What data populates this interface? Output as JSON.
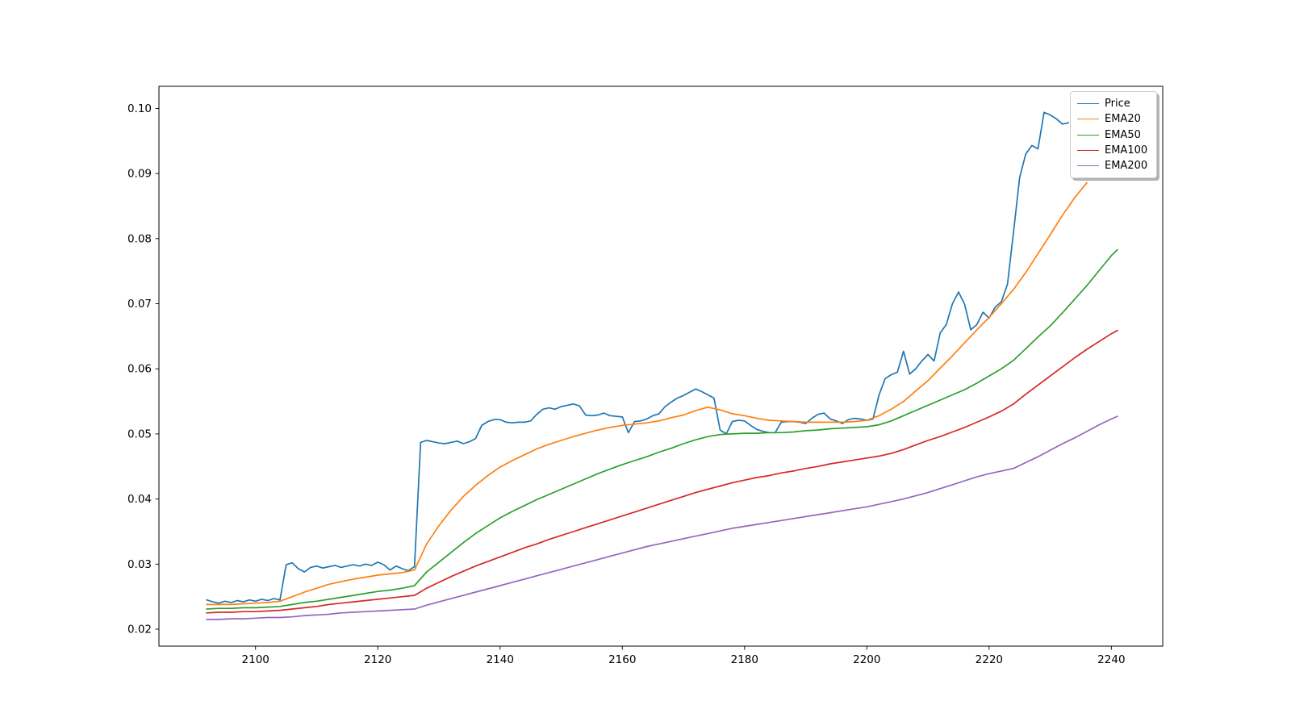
{
  "figure": {
    "background": "#ffffff"
  },
  "chart_data": {
    "type": "line",
    "title": "",
    "xlabel": "",
    "ylabel": "",
    "grid": false,
    "xlim": [
      2084.2,
      2248.4
    ],
    "ylim": [
      0.0174,
      0.1034
    ],
    "xticks": [
      2100,
      2120,
      2140,
      2160,
      2180,
      2200,
      2220,
      2240
    ],
    "yticks": [
      0.02,
      0.03,
      0.04,
      0.05,
      0.06,
      0.07,
      0.08,
      0.09,
      0.1
    ],
    "legend": {
      "position": "upper right",
      "shadow": true
    },
    "series": [
      {
        "name": "Price",
        "color": "#1f77b4",
        "x_start": 2092,
        "x_step": 1,
        "values": [
          0.0245,
          0.0242,
          0.024,
          0.0243,
          0.0241,
          0.0244,
          0.0242,
          0.0245,
          0.0243,
          0.0246,
          0.0244,
          0.0247,
          0.0245,
          0.0299,
          0.0302,
          0.0293,
          0.0288,
          0.0295,
          0.0297,
          0.0294,
          0.0296,
          0.0298,
          0.0295,
          0.0297,
          0.0299,
          0.0297,
          0.03,
          0.0298,
          0.0303,
          0.0299,
          0.0291,
          0.0297,
          0.0293,
          0.029,
          0.0296,
          0.0487,
          0.049,
          0.0488,
          0.0486,
          0.0485,
          0.0487,
          0.0489,
          0.0485,
          0.0488,
          0.0493,
          0.0513,
          0.0519,
          0.0522,
          0.0522,
          0.0518,
          0.0517,
          0.0518,
          0.0518,
          0.052,
          0.053,
          0.0538,
          0.054,
          0.0538,
          0.0542,
          0.0544,
          0.0546,
          0.0543,
          0.0529,
          0.0528,
          0.0529,
          0.0532,
          0.0528,
          0.0527,
          0.0526,
          0.0502,
          0.0519,
          0.052,
          0.0523,
          0.0528,
          0.0531,
          0.0542,
          0.0549,
          0.0555,
          0.0559,
          0.0564,
          0.0569,
          0.0565,
          0.056,
          0.0555,
          0.0506,
          0.05,
          0.0519,
          0.0521,
          0.052,
          0.0513,
          0.0507,
          0.0504,
          0.0502,
          0.0502,
          0.0518,
          0.0519,
          0.0519,
          0.0518,
          0.0516,
          0.0524,
          0.053,
          0.0532,
          0.0523,
          0.052,
          0.0516,
          0.0522,
          0.0524,
          0.0523,
          0.0521,
          0.0523,
          0.056,
          0.0585,
          0.0591,
          0.0595,
          0.0627,
          0.0592,
          0.06,
          0.0612,
          0.0622,
          0.0612,
          0.0655,
          0.0668,
          0.07,
          0.0718,
          0.0699,
          0.066,
          0.0668,
          0.0687,
          0.0678,
          0.0695,
          0.0703,
          0.073,
          0.081,
          0.0894,
          0.093,
          0.0943,
          0.0938,
          0.0994,
          0.099,
          0.0984,
          0.0976,
          0.0978
        ]
      },
      {
        "name": "EMA20",
        "color": "#ff7f0e",
        "x_start": 2092,
        "x_step": 2,
        "values": [
          0.0238,
          0.0238,
          0.0238,
          0.0239,
          0.024,
          0.0241,
          0.0243,
          0.025,
          0.0257,
          0.0263,
          0.0269,
          0.0273,
          0.0277,
          0.028,
          0.0283,
          0.0285,
          0.0287,
          0.0291,
          0.0331,
          0.0359,
          0.0383,
          0.0404,
          0.0421,
          0.0436,
          0.0449,
          0.0459,
          0.0468,
          0.0477,
          0.0484,
          0.049,
          0.0496,
          0.0501,
          0.0506,
          0.051,
          0.0513,
          0.0515,
          0.0517,
          0.052,
          0.0525,
          0.0529,
          0.0536,
          0.0541,
          0.0537,
          0.0531,
          0.0528,
          0.0524,
          0.0521,
          0.052,
          0.0519,
          0.0518,
          0.0518,
          0.0518,
          0.0518,
          0.0519,
          0.0521,
          0.0528,
          0.0538,
          0.055,
          0.0566,
          0.0582,
          0.0601,
          0.062,
          0.064,
          0.066,
          0.0679,
          0.07,
          0.0722,
          0.0748,
          0.0777,
          0.0806,
          0.0836,
          0.0863,
          0.0886
        ]
      },
      {
        "name": "EMA50",
        "color": "#2ca02c",
        "x_start": 2092,
        "x_step": 2,
        "x_end": 2241,
        "values": [
          0.0231,
          0.0232,
          0.0232,
          0.0233,
          0.0233,
          0.0234,
          0.0235,
          0.0238,
          0.0241,
          0.0243,
          0.0246,
          0.0249,
          0.0252,
          0.0255,
          0.0258,
          0.026,
          0.0263,
          0.0267,
          0.0288,
          0.0303,
          0.0318,
          0.0333,
          0.0347,
          0.0359,
          0.0371,
          0.0381,
          0.039,
          0.0399,
          0.0407,
          0.0415,
          0.0423,
          0.0431,
          0.0439,
          0.0446,
          0.0453,
          0.0459,
          0.0465,
          0.0472,
          0.0478,
          0.0485,
          0.0491,
          0.0496,
          0.0499,
          0.05,
          0.0501,
          0.0501,
          0.0502,
          0.0502,
          0.0503,
          0.0505,
          0.0506,
          0.0508,
          0.0509,
          0.051,
          0.0511,
          0.0514,
          0.052,
          0.0528,
          0.0536,
          0.0544,
          0.0552,
          0.056,
          0.0568,
          0.0578,
          0.0589,
          0.06,
          0.0613,
          0.0631,
          0.0649,
          0.0666,
          0.0686,
          0.0707,
          0.0728,
          0.0751,
          0.0774,
          0.0783
        ]
      },
      {
        "name": "EMA100",
        "color": "#d62728",
        "x_start": 2092,
        "x_step": 2,
        "x_end": 2241,
        "values": [
          0.0225,
          0.0226,
          0.0226,
          0.0227,
          0.0227,
          0.0228,
          0.0229,
          0.0231,
          0.0233,
          0.0235,
          0.0238,
          0.024,
          0.0242,
          0.0244,
          0.0246,
          0.0248,
          0.025,
          0.0252,
          0.0263,
          0.0272,
          0.0281,
          0.0289,
          0.0297,
          0.0304,
          0.0311,
          0.0318,
          0.0325,
          0.0331,
          0.0338,
          0.0344,
          0.035,
          0.0356,
          0.0362,
          0.0368,
          0.0374,
          0.038,
          0.0386,
          0.0392,
          0.0398,
          0.0404,
          0.041,
          0.0415,
          0.042,
          0.0425,
          0.0429,
          0.0433,
          0.0436,
          0.044,
          0.0443,
          0.0447,
          0.045,
          0.0454,
          0.0457,
          0.046,
          0.0463,
          0.0466,
          0.047,
          0.0476,
          0.0483,
          0.049,
          0.0496,
          0.0503,
          0.051,
          0.0518,
          0.0526,
          0.0535,
          0.0546,
          0.0561,
          0.0575,
          0.0589,
          0.0603,
          0.0617,
          0.063,
          0.0642,
          0.0654,
          0.0659
        ]
      },
      {
        "name": "EMA200",
        "color": "#9467bd",
        "x_start": 2092,
        "x_step": 2,
        "x_end": 2241,
        "values": [
          0.0215,
          0.0215,
          0.0216,
          0.0216,
          0.0217,
          0.0218,
          0.0218,
          0.0219,
          0.0221,
          0.0222,
          0.0223,
          0.0225,
          0.0226,
          0.0227,
          0.0228,
          0.0229,
          0.023,
          0.0231,
          0.0237,
          0.0242,
          0.0247,
          0.0252,
          0.0257,
          0.0262,
          0.0267,
          0.0272,
          0.0277,
          0.0282,
          0.0287,
          0.0292,
          0.0297,
          0.0302,
          0.0307,
          0.0312,
          0.0317,
          0.0322,
          0.0327,
          0.0331,
          0.0335,
          0.0339,
          0.0343,
          0.0347,
          0.0351,
          0.0355,
          0.0358,
          0.0361,
          0.0364,
          0.0367,
          0.037,
          0.0373,
          0.0376,
          0.0379,
          0.0382,
          0.0385,
          0.0388,
          0.0392,
          0.0396,
          0.04,
          0.0405,
          0.041,
          0.0416,
          0.0422,
          0.0428,
          0.0434,
          0.0439,
          0.0443,
          0.0447,
          0.0456,
          0.0465,
          0.0475,
          0.0485,
          0.0494,
          0.0504,
          0.0514,
          0.0523,
          0.0527
        ]
      }
    ]
  }
}
